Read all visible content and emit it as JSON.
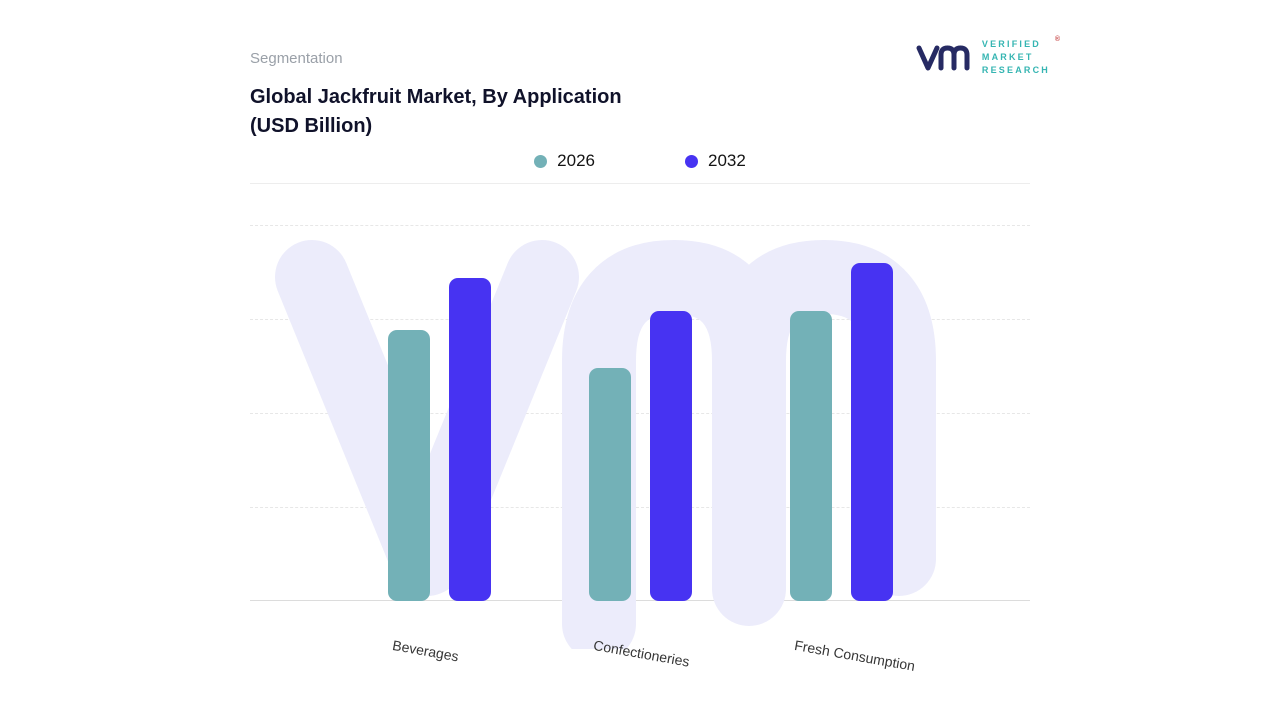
{
  "header": {
    "eyebrow": "Segmentation",
    "title_line1": "Global Jackfruit Market, By Application",
    "title_line2": "(USD Billion)"
  },
  "logo": {
    "lines": [
      "VERIFIED",
      "MARKET",
      "RESEARCH"
    ],
    "registered": "®",
    "glyph_color": "#262a63",
    "text_color": "#35b5b2"
  },
  "chart_data": {
    "type": "bar",
    "title": "Global Jackfruit Market, By Application (USD Billion)",
    "categories": [
      "Beverages",
      "Confectioneries",
      "Fresh Consumption"
    ],
    "series": [
      {
        "name": "2026",
        "color": "#73B1B7",
        "values": [
          7.2,
          6.2,
          7.7
        ]
      },
      {
        "name": "2032",
        "color": "#4733F2",
        "values": [
          8.6,
          7.7,
          9.0
        ]
      }
    ],
    "xlabel": "",
    "ylabel": "",
    "ylim": [
      0,
      10
    ],
    "y_axis_visible": false,
    "values_estimated": true,
    "grid": "horizontal-dashed",
    "legend_position": "top-center",
    "watermark": "vm"
  },
  "colors": {
    "background": "#ffffff",
    "watermark": "#ECECFB",
    "gridline": "#e7e7e7",
    "baseline": "#dcdcdc"
  }
}
